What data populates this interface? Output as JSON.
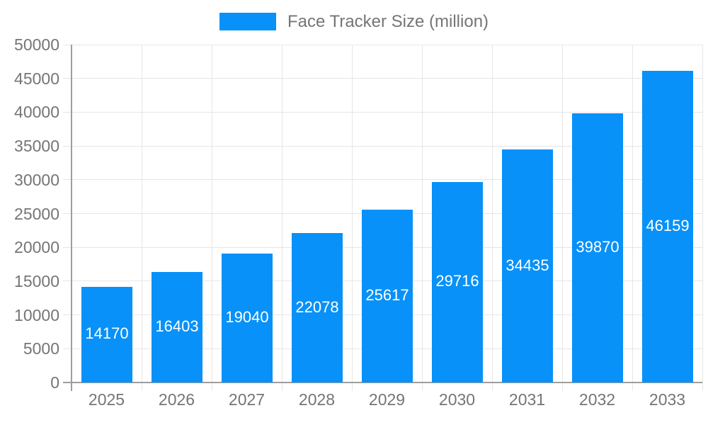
{
  "chart_data": {
    "type": "bar",
    "title": "Face Tracker Size (million)",
    "categories": [
      "2025",
      "2026",
      "2027",
      "2028",
      "2029",
      "2030",
      "2031",
      "2032",
      "2033"
    ],
    "values": [
      14170,
      16403,
      19040,
      22078,
      25617,
      29716,
      34435,
      39870,
      46159
    ],
    "xlabel": "",
    "ylabel": "",
    "ylim": [
      0,
      50000
    ],
    "ytick_step": 5000,
    "ytick_labels": [
      "0",
      "5000",
      "10000",
      "15000",
      "20000",
      "25000",
      "30000",
      "35000",
      "40000",
      "45000",
      "50000"
    ],
    "grid": "on",
    "legend_position": "top",
    "bar_color": "#0891f8",
    "value_label_color": "#ffffff",
    "axis_color": "#9e9e9e",
    "grid_color": "#e6e6e6",
    "text_color": "#757575"
  }
}
